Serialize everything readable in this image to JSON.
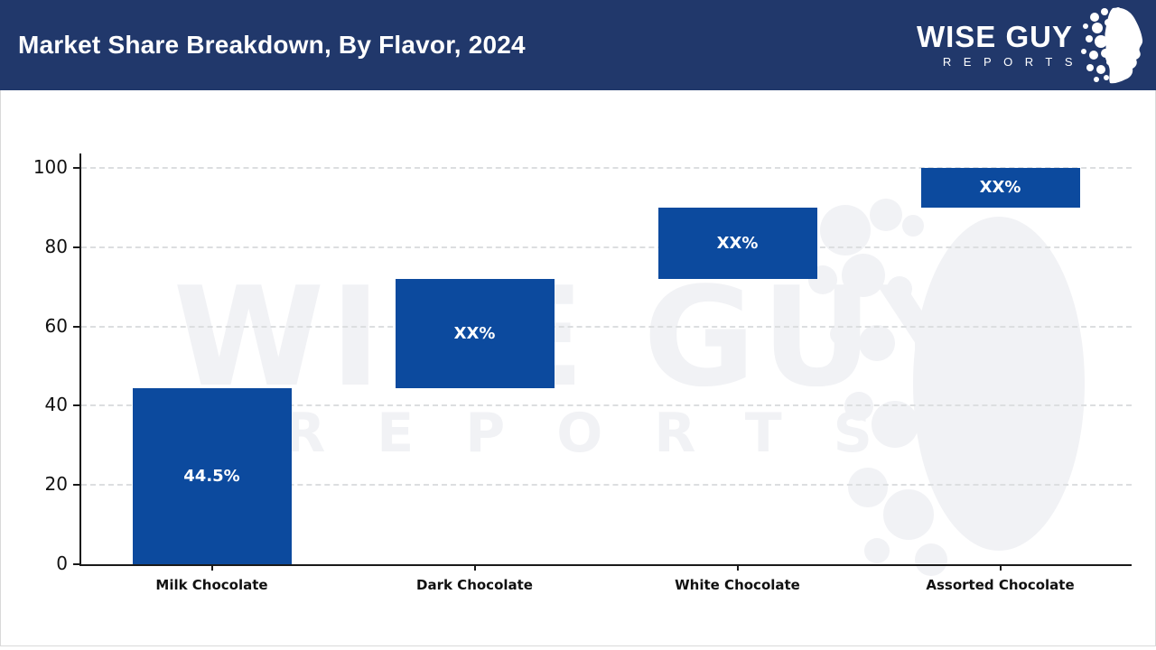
{
  "header": {
    "title": "Market Share Breakdown, By Flavor, 2024",
    "bg_color": "#21386b",
    "logo": {
      "line1": "WISE GUY",
      "line2": "REPORTS"
    }
  },
  "watermark": {
    "line1": "WISE GUY",
    "line2": "REPORTS"
  },
  "chart_data": {
    "type": "bar",
    "subtype": "waterfall-floating-bars",
    "title": "Market Share Breakdown, By Flavor, 2024",
    "categories": [
      "Milk Chocolate",
      "Dark Chocolate",
      "White Chocolate",
      "Assorted Chocolate"
    ],
    "segments": [
      {
        "category": "Milk Chocolate",
        "start": 0,
        "end": 44.5,
        "value": 44.5,
        "label": "44.5%"
      },
      {
        "category": "Dark Chocolate",
        "start": 44.5,
        "end": 72,
        "value": 27.5,
        "label": "XX%"
      },
      {
        "category": "White Chocolate",
        "start": 72,
        "end": 90,
        "value": 18,
        "label": "XX%"
      },
      {
        "category": "Assorted Chocolate",
        "start": 90,
        "end": 100,
        "value": 10,
        "label": "XX%"
      }
    ],
    "xlabel": "",
    "ylabel": "",
    "ylim": [
      0,
      100
    ],
    "yticks": [
      0,
      20,
      40,
      60,
      80,
      100
    ],
    "grid": {
      "axis": "y",
      "style": "dashed",
      "color": "#dcdee0"
    },
    "legend": "none",
    "bar_color": "#0c4a9e",
    "bar_label_color": "#ffffff",
    "axis_color": "#1a1a1a"
  }
}
